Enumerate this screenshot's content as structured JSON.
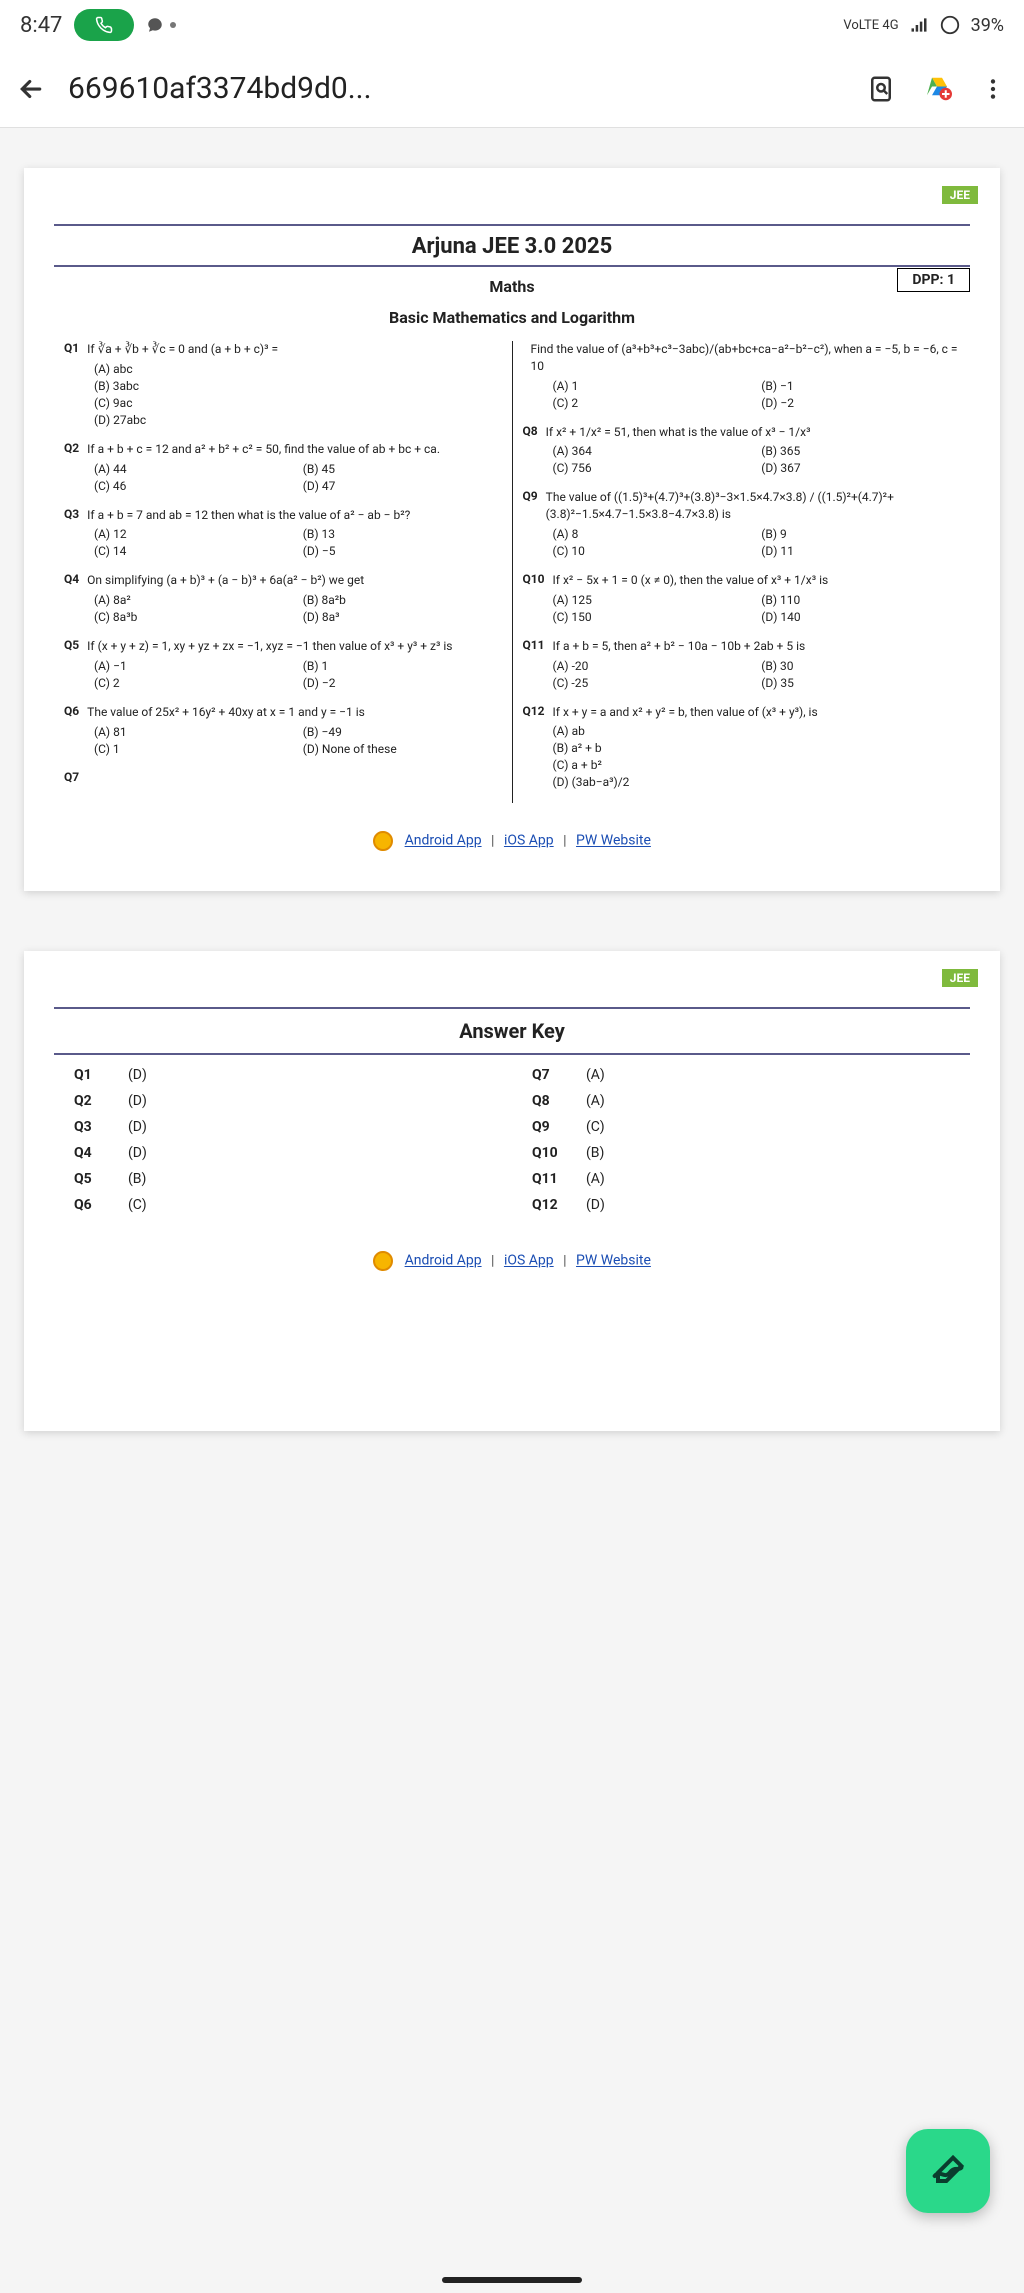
{
  "statusbar": {
    "time": "8:47",
    "network_label": "VoLTE 4G",
    "battery": "39%"
  },
  "appbar": {
    "title": "669610af3374bd9d0..."
  },
  "doc": {
    "tag": "JEE",
    "title": "Arjuna JEE 3.0 2025",
    "subject": "Maths",
    "dpp": "DPP: 1",
    "chapter": "Basic Mathematics and Logarithm",
    "left_questions": [
      {
        "num": "Q1",
        "text": "If ∛a + ∛b + ∛c = 0 and (a + b + c)³ =",
        "opts": [
          "(A) abc",
          "(B) 3abc",
          "(C) 9ac",
          "(D) 27abc"
        ],
        "single": true
      },
      {
        "num": "Q2",
        "text": "If a + b + c = 12 and a² + b² + c² = 50, find the value of ab + bc + ca.",
        "opts": [
          "(A) 44",
          "(B) 45",
          "(C) 46",
          "(D) 47"
        ]
      },
      {
        "num": "Q3",
        "text": "If a + b = 7 and ab = 12 then what is the value of a² − ab − b²?",
        "opts": [
          "(A) 12",
          "(B) 13",
          "(C) 14",
          "(D) −5"
        ]
      },
      {
        "num": "Q4",
        "text": "On simplifying (a + b)³ + (a − b)³ + 6a(a² − b²) we get",
        "opts": [
          "(A) 8a²",
          "(B) 8a²b",
          "(C) 8a³b",
          "(D) 8a³"
        ]
      },
      {
        "num": "Q5",
        "text": "If (x + y + z) = 1, xy + yz + zx = −1, xyz = −1 then value of x³ + y³ + z³ is",
        "opts": [
          "(A) −1",
          "(B) 1",
          "(C) 2",
          "(D) −2"
        ]
      },
      {
        "num": "Q6",
        "text": "The value of 25x² + 16y² + 40xy at x = 1 and y = −1 is",
        "opts": [
          "(A) 81",
          "(B) −49",
          "(C) 1",
          "(D) None of these"
        ]
      },
      {
        "num": "Q7",
        "text": "",
        "opts": []
      }
    ],
    "right_questions": [
      {
        "num": "",
        "text": "Find the value of (a³+b³+c³−3abc)/(ab+bc+ca−a²−b²−c²), when a = −5, b = −6, c = 10",
        "opts": [
          "(A) 1",
          "(B) −1",
          "(C) 2",
          "(D) −2"
        ]
      },
      {
        "num": "Q8",
        "text": "If x² + 1/x² = 51, then what is the value of x³ − 1/x³",
        "opts": [
          "(A) 364",
          "(B) 365",
          "(C) 756",
          "(D) 367"
        ]
      },
      {
        "num": "Q9",
        "text": "The value of ((1.5)³+(4.7)³+(3.8)³−3×1.5×4.7×3.8) / ((1.5)²+(4.7)²+(3.8)²−1.5×4.7−1.5×3.8−4.7×3.8) is",
        "opts": [
          "(A) 8",
          "(B) 9",
          "(C) 10",
          "(D) 11"
        ]
      },
      {
        "num": "Q10",
        "text": "If x² − 5x + 1 = 0 (x ≠ 0), then the value of x³ + 1/x³ is",
        "opts": [
          "(A) 125",
          "(B) 110",
          "(C) 150",
          "(D) 140"
        ]
      },
      {
        "num": "Q11",
        "text": "If a + b = 5, then a² + b² − 10a − 10b + 2ab + 5 is",
        "opts": [
          "(A) -20",
          "(B) 30",
          "(C) -25",
          "(D) 35"
        ]
      },
      {
        "num": "Q12",
        "text": "If x + y = a and x² + y² = b, then value of (x³ + y³), is",
        "opts": [
          "(A) ab",
          "(B) a² + b",
          "(C) a + b²",
          "(D) (3ab−a³)/2"
        ],
        "single": true
      }
    ],
    "links": {
      "android": "Android App",
      "ios": "iOS App",
      "web": "PW Website"
    }
  },
  "answer_key": {
    "title": "Answer Key",
    "left": [
      {
        "q": "Q1",
        "a": "(D)"
      },
      {
        "q": "Q2",
        "a": "(D)"
      },
      {
        "q": "Q3",
        "a": "(D)"
      },
      {
        "q": "Q4",
        "a": "(D)"
      },
      {
        "q": "Q5",
        "a": "(B)"
      },
      {
        "q": "Q6",
        "a": "(C)"
      }
    ],
    "right": [
      {
        "q": "Q7",
        "a": "(A)"
      },
      {
        "q": "Q8",
        "a": "(A)"
      },
      {
        "q": "Q9",
        "a": "(C)"
      },
      {
        "q": "Q10",
        "a": "(B)"
      },
      {
        "q": "Q11",
        "a": "(A)"
      },
      {
        "q": "Q12",
        "a": "(D)"
      }
    ]
  }
}
